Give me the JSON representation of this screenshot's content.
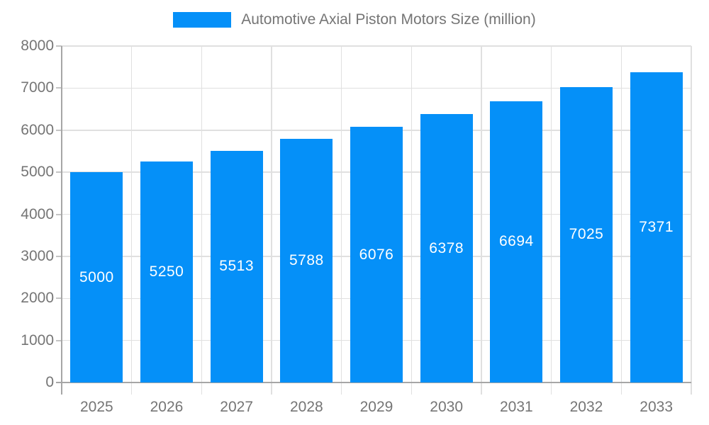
{
  "chart_data": {
    "type": "bar",
    "legend": "Automotive Axial Piston Motors Size (million)",
    "categories": [
      "2025",
      "2026",
      "2027",
      "2028",
      "2029",
      "2030",
      "2031",
      "2032",
      "2033"
    ],
    "values": [
      5000,
      5250,
      5513,
      5788,
      6076,
      6378,
      6694,
      7025,
      7371
    ],
    "bar_labels": [
      "5000",
      "5250",
      "5513",
      "5788",
      "6076",
      "6378",
      "6694",
      "7025",
      "7371"
    ],
    "xlabel": "",
    "ylabel": "",
    "ylim": [
      0,
      8000
    ],
    "ytick_step": 1000,
    "ytick_labels": [
      "0",
      "1000",
      "2000",
      "3000",
      "4000",
      "5000",
      "6000",
      "7000",
      "8000"
    ],
    "grid": true,
    "legend_position": "top-center",
    "colors": {
      "bar": "#0590F8",
      "bar_label": "#FFFFFF",
      "grid": "#E0E0E0",
      "axis": "#A6A6A6",
      "tick_dash": "#C4C4C4",
      "text": "#757575"
    }
  }
}
